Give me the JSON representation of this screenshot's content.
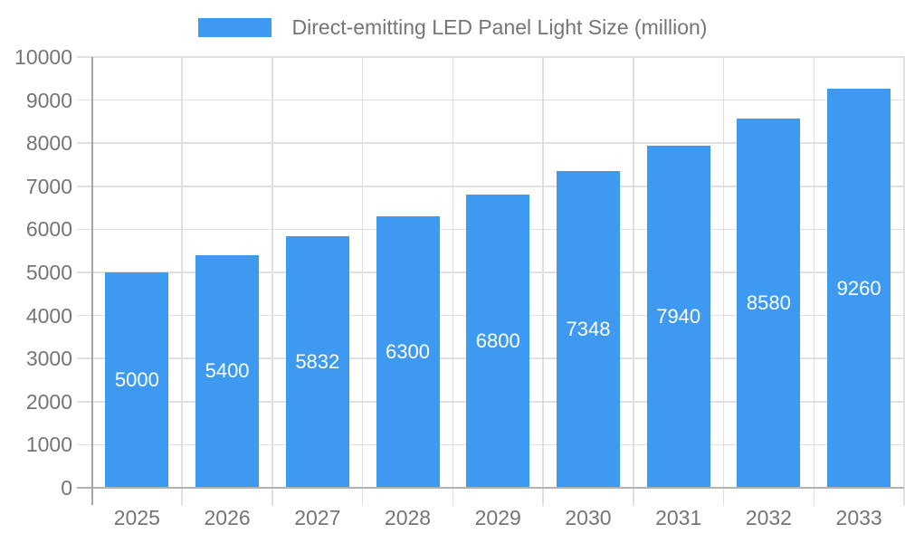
{
  "chart_data": {
    "type": "bar",
    "title": "Direct-emitting LED Panel Light Size (million)",
    "legend_position": "top",
    "legend": [
      {
        "label": "Direct-emitting LED Panel Light Size (million)",
        "color": "#3d9af0"
      }
    ],
    "categories": [
      "2025",
      "2026",
      "2027",
      "2028",
      "2029",
      "2030",
      "2031",
      "2032",
      "2033"
    ],
    "values": [
      5000,
      5400,
      5832,
      6300,
      6800,
      7348,
      7940,
      8580,
      9260
    ],
    "xlabel": "",
    "ylabel": "",
    "ylim": [
      0,
      10000
    ],
    "yticks": [
      0,
      1000,
      2000,
      3000,
      4000,
      5000,
      6000,
      7000,
      8000,
      9000,
      10000
    ],
    "grid": true,
    "bar_labels_inside": true,
    "colors": {
      "bar": "#3d9af0",
      "bar_label_text": "#ffffff",
      "axis_text": "#757575",
      "gridline": "#e0e0e0",
      "x_axis_line": "#b2b2b2",
      "y_axis_line": "#a5a5a5",
      "background": "#ffffff"
    }
  }
}
